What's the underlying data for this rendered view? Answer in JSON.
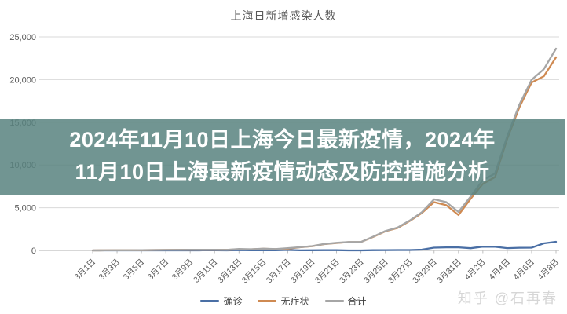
{
  "chart_data": {
    "type": "line",
    "title": "上海日新增感染人数",
    "x": [
      "3月1日",
      "3月2日",
      "3月3日",
      "3月4日",
      "3月5日",
      "3月6日",
      "3月7日",
      "3月8日",
      "3月9日",
      "3月10日",
      "3月11日",
      "3月12日",
      "3月13日",
      "3月14日",
      "3月15日",
      "3月16日",
      "3月17日",
      "3月18日",
      "3月19日",
      "3月20日",
      "3月21日",
      "3月22日",
      "3月23日",
      "3月24日",
      "3月25日",
      "3月26日",
      "3月27日",
      "3月28日",
      "3月29日",
      "3月30日",
      "3月31日",
      "4月1日",
      "4月2日",
      "4月3日",
      "4月4日",
      "4月5日",
      "4月6日",
      "4月7日",
      "4月8日"
    ],
    "x_tick_labels": [
      "3月1日",
      "3月3日",
      "3月5日",
      "3月7日",
      "3月9日",
      "3月11日",
      "3月13日",
      "3月15日",
      "3月17日",
      "3月19日",
      "3月21日",
      "3月23日",
      "3月25日",
      "3月27日",
      "3月29日",
      "3月31日",
      "4月2日",
      "4月4日",
      "4月6日",
      "4月8日"
    ],
    "series": [
      {
        "id": "confirmed",
        "name": "确诊",
        "color": "#4a6fa5",
        "values": [
          1,
          3,
          2,
          3,
          0,
          3,
          4,
          3,
          4,
          11,
          5,
          1,
          41,
          9,
          5,
          8,
          57,
          8,
          17,
          24,
          31,
          4,
          4,
          29,
          38,
          45,
          50,
          96,
          326,
          355,
          358,
          260,
          438,
          425,
          268,
          311,
          322,
          824,
          1015
        ]
      },
      {
        "id": "asymptomatic",
        "name": "无症状",
        "color": "#cf8a52",
        "values": [
          1,
          5,
          14,
          16,
          28,
          45,
          51,
          62,
          76,
          64,
          78,
          64,
          128,
          130,
          197,
          150,
          203,
          366,
          492,
          734,
          865,
          977,
          979,
          1580,
          2231,
          2631,
          3450,
          4381,
          5656,
          5298,
          4144,
          6051,
          7788,
          8581,
          13086,
          16766,
          19660,
          20398,
          22609
        ]
      },
      {
        "id": "total",
        "name": "合计",
        "color": "#a6a6a6",
        "values": [
          2,
          8,
          16,
          19,
          28,
          48,
          55,
          65,
          80,
          75,
          83,
          65,
          169,
          139,
          202,
          158,
          260,
          374,
          509,
          758,
          896,
          981,
          983,
          1609,
          2269,
          2676,
          3500,
          4477,
          5982,
          5653,
          4502,
          6311,
          8226,
          9006,
          13354,
          17077,
          19982,
          21222,
          23624
        ]
      }
    ],
    "ylim": [
      0,
      25000
    ],
    "y_ticks": [
      "0",
      "5,000",
      "10,000",
      "15,000",
      "20,000",
      "25,000"
    ],
    "grid": true,
    "legend_position": "bottom"
  },
  "overlay": {
    "lines": [
      "2024年11月10日上海今日最新疫情，2024年",
      "11月10日上海最新疫情动态及防控措施分析"
    ],
    "background_color": "#5a837f"
  },
  "watermark": {
    "text": "知乎 @石再春"
  },
  "colors": {
    "gridline": "#dadada",
    "axis": "#bfbfbf",
    "tick_label": "#595959",
    "legend_text": "#404040",
    "title_text": "#595959"
  }
}
